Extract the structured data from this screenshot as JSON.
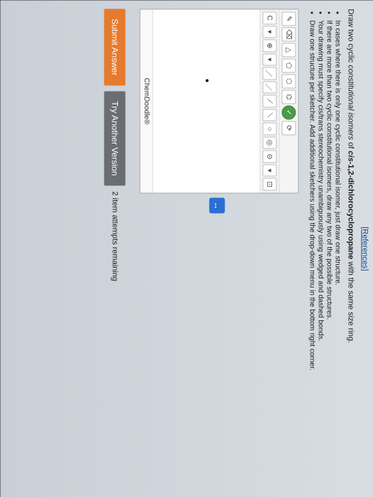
{
  "references_label": "[References]",
  "prompt_html": "Draw two cyclic constitutional isomers of cis-1,2-dichlorocyclopropane with the same size ring.",
  "instructions": [
    "In cases where there is only one cyclic constitutional isomer, just draw one structure.",
    "If there are more than two cyclic constitutional isomers, draw any two of the possible structures.",
    "Your drawing must specify cis/trans stereochemistry unambiguously using wedged and dashed bonds.",
    "Draw one structure per sketcher. Add additional sketchers using the drop-down menu in the bottom right corner."
  ],
  "toolbar": {
    "row1": [
      "✎",
      "⌫",
      "△",
      "⬠",
      "⬡",
      "⌬",
      "✓",
      "⟳"
    ],
    "row2": [
      "C",
      "▾",
      "⊕",
      "▾",
      "／",
      "／",
      "⟋",
      "⟍",
      "○",
      "◎",
      "⊝",
      "▾",
      "⊡"
    ]
  },
  "brand": "ChemDoodle®",
  "swap_icon": "↔",
  "submit_label": "Submit Answer",
  "try_label": "Try Another Version",
  "attempts_text": "2 item attempts remaining",
  "colors": {
    "submit_bg": "#e67a2e",
    "try_bg": "#6a6e72",
    "link": "#0b4a8a",
    "page_bg_top": "#d8dde2",
    "page_bg_bot": "#c8cfd6",
    "green_btn": "#4a9b4a",
    "swap_btn": "#2a6fd6"
  }
}
